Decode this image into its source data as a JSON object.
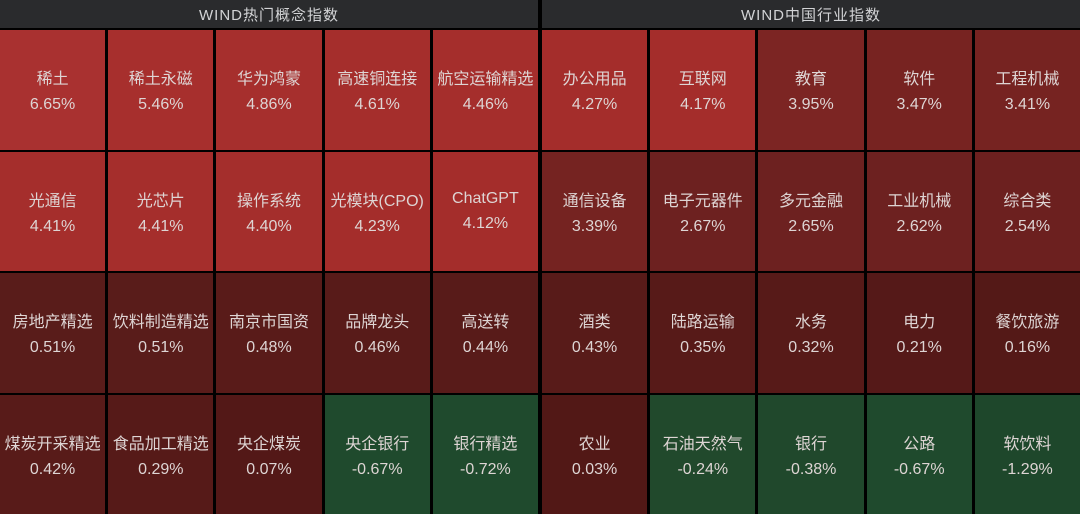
{
  "colors": {
    "background": "#000000",
    "header_bg": "#2a2b2d",
    "header_text": "#d2d3d5",
    "cell_text": "#ded5d4",
    "gain_strong": "#a52e2c",
    "gain_medium": "#7b2423",
    "gain_weak": "#581b19",
    "loss": "#1f4a2d"
  },
  "panels": [
    {
      "title": "WIND热门概念指数",
      "cells": [
        {
          "name": "稀土",
          "change": "6.65%",
          "color": "#a93130"
        },
        {
          "name": "稀土永磁",
          "change": "5.46%",
          "color": "#a72f2d"
        },
        {
          "name": "华为鸿蒙",
          "change": "4.86%",
          "color": "#a62f2d"
        },
        {
          "name": "高速铜连接",
          "change": "4.61%",
          "color": "#a52e2c"
        },
        {
          "name": "航空运输精选",
          "change": "4.46%",
          "color": "#a52e2c"
        },
        {
          "name": "光通信",
          "change": "4.41%",
          "color": "#a52e2c"
        },
        {
          "name": "光芯片",
          "change": "4.41%",
          "color": "#a52e2c"
        },
        {
          "name": "操作系统",
          "change": "4.40%",
          "color": "#a42e2c"
        },
        {
          "name": "光模块(CPO)",
          "change": "4.23%",
          "color": "#a42d2b"
        },
        {
          "name": "ChatGPT",
          "change": "4.12%",
          "color": "#a42d2b"
        },
        {
          "name": "房地产精选",
          "change": "0.51%",
          "color": "#591c1a"
        },
        {
          "name": "饮料制造精选",
          "change": "0.51%",
          "color": "#591c1a"
        },
        {
          "name": "南京市国资",
          "change": "0.48%",
          "color": "#591b19"
        },
        {
          "name": "品牌龙头",
          "change": "0.46%",
          "color": "#581b19"
        },
        {
          "name": "高送转",
          "change": "0.44%",
          "color": "#581b19"
        },
        {
          "name": "煤炭开采精选",
          "change": "0.42%",
          "color": "#581b19"
        },
        {
          "name": "食品加工精选",
          "change": "0.29%",
          "color": "#561a18"
        },
        {
          "name": "央企煤炭",
          "change": "0.07%",
          "color": "#531817"
        },
        {
          "name": "央企银行",
          "change": "-0.67%",
          "color": "#1f4a2d"
        },
        {
          "name": "银行精选",
          "change": "-0.72%",
          "color": "#1f4a2d"
        }
      ]
    },
    {
      "title": "WIND中国行业指数",
      "cells": [
        {
          "name": "办公用品",
          "change": "4.27%",
          "color": "#a42d2b"
        },
        {
          "name": "互联网",
          "change": "4.17%",
          "color": "#a42d2b"
        },
        {
          "name": "教育",
          "change": "3.95%",
          "color": "#7c2523"
        },
        {
          "name": "软件",
          "change": "3.47%",
          "color": "#772321"
        },
        {
          "name": "工程机械",
          "change": "3.41%",
          "color": "#762321"
        },
        {
          "name": "通信设备",
          "change": "3.39%",
          "color": "#752321"
        },
        {
          "name": "电子元器件",
          "change": "2.67%",
          "color": "#6d2120"
        },
        {
          "name": "多元金融",
          "change": "2.65%",
          "color": "#6d2120"
        },
        {
          "name": "工业机械",
          "change": "2.62%",
          "color": "#6d2120"
        },
        {
          "name": "综合类",
          "change": "2.54%",
          "color": "#6c201f"
        },
        {
          "name": "酒类",
          "change": "0.43%",
          "color": "#581b19"
        },
        {
          "name": "陆路运输",
          "change": "0.35%",
          "color": "#571a18"
        },
        {
          "name": "水务",
          "change": "0.32%",
          "color": "#571a18"
        },
        {
          "name": "电力",
          "change": "0.21%",
          "color": "#551918"
        },
        {
          "name": "餐饮旅游",
          "change": "0.16%",
          "color": "#541917"
        },
        {
          "name": "农业",
          "change": "0.03%",
          "color": "#521816"
        },
        {
          "name": "石油天然气",
          "change": "-0.24%",
          "color": "#21492c"
        },
        {
          "name": "银行",
          "change": "-0.38%",
          "color": "#20482c"
        },
        {
          "name": "公路",
          "change": "-0.67%",
          "color": "#1f4a2d"
        },
        {
          "name": "软饮料",
          "change": "-1.29%",
          "color": "#1e472b"
        }
      ]
    }
  ],
  "chart_data": [
    {
      "type": "heatmap",
      "title": "WIND热门概念指数",
      "unit": "%",
      "grid": {
        "rows": 4,
        "cols": 5
      },
      "categories": [
        "稀土",
        "稀土永磁",
        "华为鸿蒙",
        "高速铜连接",
        "航空运输精选",
        "光通信",
        "光芯片",
        "操作系统",
        "光模块(CPO)",
        "ChatGPT",
        "房地产精选",
        "饮料制造精选",
        "南京市国资",
        "品牌龙头",
        "高送转",
        "煤炭开采精选",
        "食品加工精选",
        "央企煤炭",
        "央企银行",
        "银行精选"
      ],
      "values": [
        6.65,
        5.46,
        4.86,
        4.61,
        4.46,
        4.41,
        4.41,
        4.4,
        4.23,
        4.12,
        0.51,
        0.51,
        0.48,
        0.46,
        0.44,
        0.42,
        0.29,
        0.07,
        -0.67,
        -0.72
      ],
      "color_rule": "red = gain (brighter = larger), green = loss"
    },
    {
      "type": "heatmap",
      "title": "WIND中国行业指数",
      "unit": "%",
      "grid": {
        "rows": 4,
        "cols": 5
      },
      "categories": [
        "办公用品",
        "互联网",
        "教育",
        "软件",
        "工程机械",
        "通信设备",
        "电子元器件",
        "多元金融",
        "工业机械",
        "综合类",
        "酒类",
        "陆路运输",
        "水务",
        "电力",
        "餐饮旅游",
        "农业",
        "石油天然气",
        "银行",
        "公路",
        "软饮料"
      ],
      "values": [
        4.27,
        4.17,
        3.95,
        3.47,
        3.41,
        3.39,
        2.67,
        2.65,
        2.62,
        2.54,
        0.43,
        0.35,
        0.32,
        0.21,
        0.16,
        0.03,
        -0.24,
        -0.38,
        -0.67,
        -1.29
      ],
      "color_rule": "red = gain (brighter = larger), green = loss"
    }
  ]
}
